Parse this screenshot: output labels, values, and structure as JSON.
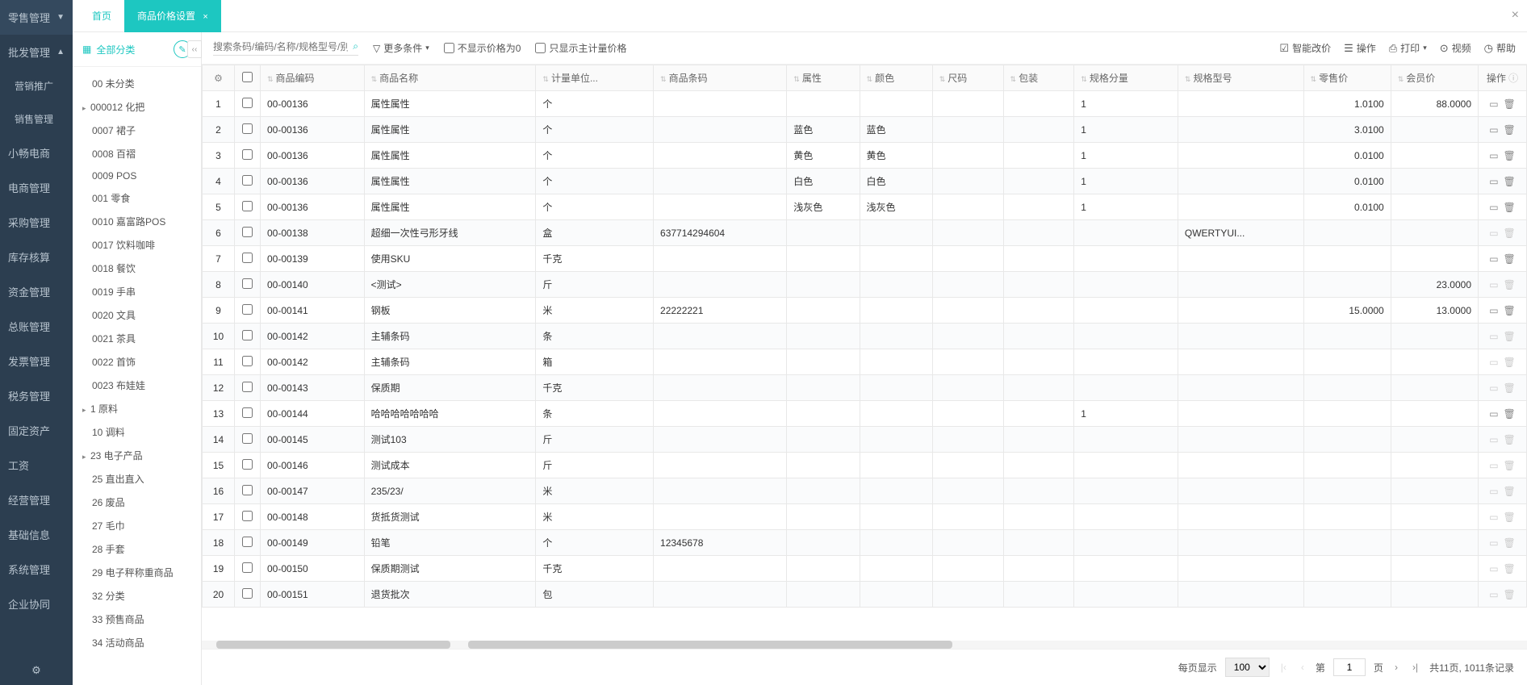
{
  "sidebar": {
    "items": [
      {
        "label": "零售管理",
        "caret": "▼"
      },
      {
        "label": "批发管理",
        "caret": "▲",
        "expanded": true
      },
      {
        "label": "营销推广",
        "sub": true
      },
      {
        "label": "销售管理",
        "sub": true
      },
      {
        "label": "小畅电商"
      },
      {
        "label": "电商管理"
      },
      {
        "label": "采购管理"
      },
      {
        "label": "库存核算"
      },
      {
        "label": "资金管理"
      },
      {
        "label": "总账管理"
      },
      {
        "label": "发票管理"
      },
      {
        "label": "税务管理"
      },
      {
        "label": "固定资产"
      },
      {
        "label": "工资"
      },
      {
        "label": "经营管理"
      },
      {
        "label": "基础信息"
      },
      {
        "label": "系统管理"
      },
      {
        "label": "企业协同"
      }
    ]
  },
  "tabs": {
    "home": "首页",
    "active": "商品价格设置",
    "close_all_title": "关闭全部"
  },
  "tree": {
    "header": "全部分类",
    "nodes": [
      {
        "label": "00 未分类"
      },
      {
        "label": "000012 化把",
        "children": true
      },
      {
        "label": "0007 裙子"
      },
      {
        "label": "0008 百褶"
      },
      {
        "label": "0009 POS"
      },
      {
        "label": "001 零食"
      },
      {
        "label": "0010 嘉富路POS"
      },
      {
        "label": "0017 饮料咖啡"
      },
      {
        "label": "0018 餐饮"
      },
      {
        "label": "0019 手串"
      },
      {
        "label": "0020 文具"
      },
      {
        "label": "0021 茶具"
      },
      {
        "label": "0022 首饰"
      },
      {
        "label": "0023 布娃娃"
      },
      {
        "label": "1 原料",
        "children": true
      },
      {
        "label": "10 调料"
      },
      {
        "label": "23 电子产品",
        "children": true
      },
      {
        "label": "25 直出直入"
      },
      {
        "label": "26 废品"
      },
      {
        "label": "27 毛巾"
      },
      {
        "label": "28 手套"
      },
      {
        "label": "29 电子秤称重商品"
      },
      {
        "label": "32 分类"
      },
      {
        "label": "33 预售商品"
      },
      {
        "label": "34 活动商品"
      }
    ]
  },
  "toolbar": {
    "search_placeholder": "搜索条码/编码/名称/规格型号/别名",
    "more_filter": "更多条件",
    "hide_zero": "不显示价格为0",
    "only_main": "只显示主计量价格",
    "smart_edit": "智能改价",
    "operate": "操作",
    "print": "打印",
    "video": "视频",
    "help": "帮助"
  },
  "table": {
    "columns": [
      "商品编码",
      "商品名称",
      "计量单位...",
      "商品条码",
      "属性",
      "颜色",
      "尺码",
      "包装",
      "规格分量",
      "规格型号",
      "零售价",
      "会员价",
      "操作"
    ],
    "ops_header": "操作",
    "rows": [
      {
        "idx": 1,
        "code": "00-00136",
        "name": "属性属性",
        "unit": "个",
        "barcode": "",
        "attr": "",
        "color": "",
        "size": "",
        "pack": "",
        "spec_qty": "1",
        "spec_model": "",
        "retail": "1.0100",
        "member": "88.0000",
        "ops": true
      },
      {
        "idx": 2,
        "code": "00-00136",
        "name": "属性属性",
        "unit": "个",
        "barcode": "",
        "attr": "蓝色",
        "color": "蓝色",
        "size": "",
        "pack": "",
        "spec_qty": "1",
        "spec_model": "",
        "retail": "3.0100",
        "member": "",
        "ops": true
      },
      {
        "idx": 3,
        "code": "00-00136",
        "name": "属性属性",
        "unit": "个",
        "barcode": "",
        "attr": "黄色",
        "color": "黄色",
        "size": "",
        "pack": "",
        "spec_qty": "1",
        "spec_model": "",
        "retail": "0.0100",
        "member": "",
        "ops": true
      },
      {
        "idx": 4,
        "code": "00-00136",
        "name": "属性属性",
        "unit": "个",
        "barcode": "",
        "attr": "白色",
        "color": "白色",
        "size": "",
        "pack": "",
        "spec_qty": "1",
        "spec_model": "",
        "retail": "0.0100",
        "member": "",
        "ops": true
      },
      {
        "idx": 5,
        "code": "00-00136",
        "name": "属性属性",
        "unit": "个",
        "barcode": "",
        "attr": "浅灰色",
        "color": "浅灰色",
        "size": "",
        "pack": "",
        "spec_qty": "1",
        "spec_model": "",
        "retail": "0.0100",
        "member": "",
        "ops": true
      },
      {
        "idx": 6,
        "code": "00-00138",
        "name": "超细一次性弓形牙线",
        "unit": "盒",
        "barcode": "637714294604",
        "attr": "",
        "color": "",
        "size": "",
        "pack": "",
        "spec_qty": "",
        "spec_model": "QWERTYUI...",
        "retail": "",
        "member": "",
        "ops": false
      },
      {
        "idx": 7,
        "code": "00-00139",
        "name": "使用SKU",
        "unit": "千克",
        "barcode": "",
        "attr": "",
        "color": "",
        "size": "",
        "pack": "",
        "spec_qty": "",
        "spec_model": "",
        "retail": "",
        "member": "",
        "ops": true
      },
      {
        "idx": 8,
        "code": "00-00140",
        "name": "<测试>",
        "unit": "斤",
        "barcode": "",
        "attr": "",
        "color": "",
        "size": "",
        "pack": "",
        "spec_qty": "",
        "spec_model": "",
        "retail": "",
        "member": "23.0000",
        "ops": false
      },
      {
        "idx": 9,
        "code": "00-00141",
        "name": "钢板",
        "unit": "米",
        "barcode": "22222221",
        "attr": "",
        "color": "",
        "size": "",
        "pack": "",
        "spec_qty": "",
        "spec_model": "",
        "retail": "15.0000",
        "member": "13.0000",
        "ops": true
      },
      {
        "idx": 10,
        "code": "00-00142",
        "name": "主辅条码",
        "unit": "条",
        "barcode": "",
        "attr": "",
        "color": "",
        "size": "",
        "pack": "",
        "spec_qty": "",
        "spec_model": "",
        "retail": "",
        "member": "",
        "ops": false
      },
      {
        "idx": 11,
        "code": "00-00142",
        "name": "主辅条码",
        "unit": "箱",
        "barcode": "",
        "attr": "",
        "color": "",
        "size": "",
        "pack": "",
        "spec_qty": "",
        "spec_model": "",
        "retail": "",
        "member": "",
        "ops": false
      },
      {
        "idx": 12,
        "code": "00-00143",
        "name": "保质期",
        "unit": "千克",
        "barcode": "",
        "attr": "",
        "color": "",
        "size": "",
        "pack": "",
        "spec_qty": "",
        "spec_model": "",
        "retail": "",
        "member": "",
        "ops": false
      },
      {
        "idx": 13,
        "code": "00-00144",
        "name": "哈哈哈哈哈哈哈",
        "unit": "条",
        "barcode": "",
        "attr": "",
        "color": "",
        "size": "",
        "pack": "",
        "spec_qty": "1",
        "spec_model": "",
        "retail": "",
        "member": "",
        "ops": true
      },
      {
        "idx": 14,
        "code": "00-00145",
        "name": "测试103",
        "unit": "斤",
        "barcode": "",
        "attr": "",
        "color": "",
        "size": "",
        "pack": "",
        "spec_qty": "",
        "spec_model": "",
        "retail": "",
        "member": "",
        "ops": false
      },
      {
        "idx": 15,
        "code": "00-00146",
        "name": "测试成本",
        "unit": "斤",
        "barcode": "",
        "attr": "",
        "color": "",
        "size": "",
        "pack": "",
        "spec_qty": "",
        "spec_model": "",
        "retail": "",
        "member": "",
        "ops": false
      },
      {
        "idx": 16,
        "code": "00-00147",
        "name": "235/23/",
        "unit": "米",
        "barcode": "",
        "attr": "",
        "color": "",
        "size": "",
        "pack": "",
        "spec_qty": "",
        "spec_model": "",
        "retail": "",
        "member": "",
        "ops": false
      },
      {
        "idx": 17,
        "code": "00-00148",
        "name": "货抵货测试",
        "unit": "米",
        "barcode": "",
        "attr": "",
        "color": "",
        "size": "",
        "pack": "",
        "spec_qty": "",
        "spec_model": "",
        "retail": "",
        "member": "",
        "ops": false
      },
      {
        "idx": 18,
        "code": "00-00149",
        "name": "铅笔",
        "unit": "个",
        "barcode": "12345678",
        "attr": "",
        "color": "",
        "size": "",
        "pack": "",
        "spec_qty": "",
        "spec_model": "",
        "retail": "",
        "member": "",
        "ops": false
      },
      {
        "idx": 19,
        "code": "00-00150",
        "name": "保质期测试",
        "unit": "千克",
        "barcode": "",
        "attr": "",
        "color": "",
        "size": "",
        "pack": "",
        "spec_qty": "",
        "spec_model": "",
        "retail": "",
        "member": "",
        "ops": false
      },
      {
        "idx": 20,
        "code": "00-00151",
        "name": "退货批次",
        "unit": "包",
        "barcode": "",
        "attr": "",
        "color": "",
        "size": "",
        "pack": "",
        "spec_qty": "",
        "spec_model": "",
        "retail": "",
        "member": "",
        "ops": false
      }
    ]
  },
  "pager": {
    "per_page_label": "每页显示",
    "per_page_value": "100",
    "page_label_prefix": "第",
    "page_value": "1",
    "page_label_suffix": "页",
    "summary": "共11页, 1011条记录"
  },
  "colors": {
    "sidebar_bg": "#2c3e50",
    "accent": "#1dc7c1",
    "border": "#e8e8e8",
    "header_bg": "#fafafa"
  }
}
